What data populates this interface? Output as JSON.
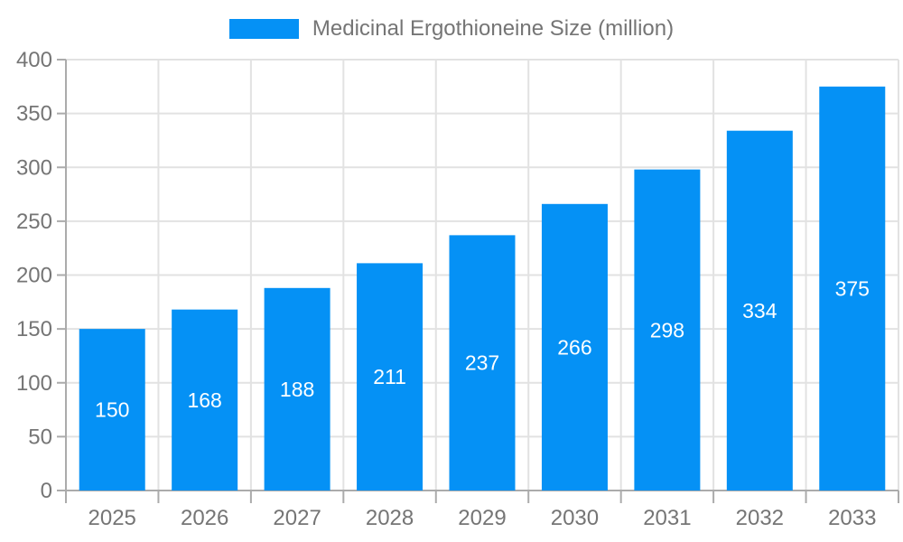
{
  "chart_data": {
    "type": "bar",
    "title": "Medicinal Ergothioneine Size (million)",
    "series_name": "Medicinal Ergothioneine Size (million)",
    "categories": [
      "2025",
      "2026",
      "2027",
      "2028",
      "2029",
      "2030",
      "2031",
      "2032",
      "2033"
    ],
    "values": [
      150,
      168,
      188,
      211,
      237,
      266,
      298,
      334,
      375
    ],
    "xlabel": "",
    "ylabel": "",
    "ylim": [
      0,
      400
    ],
    "y_tick_step": 50,
    "y_tick_labels": [
      "0",
      "50",
      "100",
      "150",
      "200",
      "250",
      "300",
      "350",
      "400"
    ],
    "grid": true,
    "legend_position": "top",
    "value_labels_inside_bars": true,
    "colors": {
      "bar": "#0591f5",
      "value_label": "#ffffff",
      "axis_line": "#ababab",
      "grid_line": "#e2e2e2",
      "tick_text": "#757575",
      "background": "#ffffff"
    }
  }
}
